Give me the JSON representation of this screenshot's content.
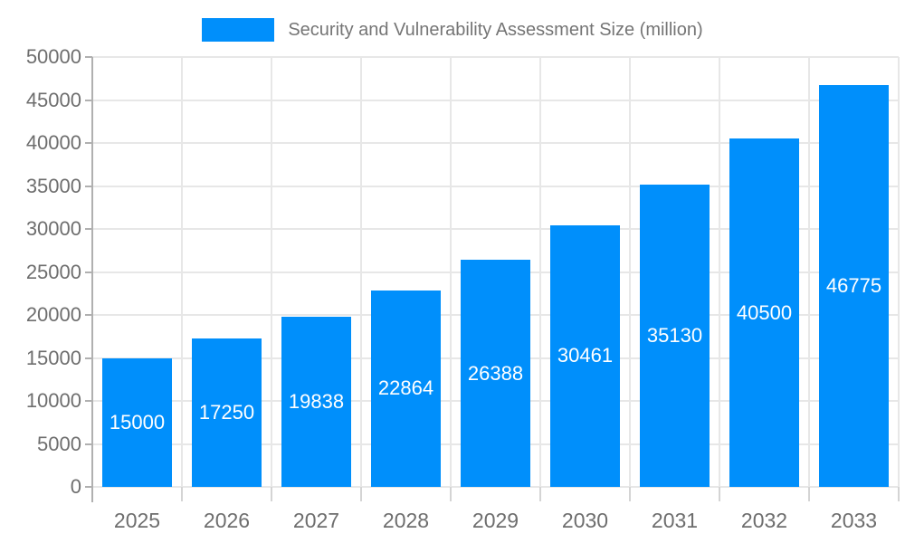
{
  "legend": {
    "label": "Security and Vulnerability Assessment Size (million)",
    "swatch_color": "#008FFB"
  },
  "chart_data": {
    "type": "bar",
    "title": "Security and Vulnerability Assessment Size (million)",
    "categories": [
      "2025",
      "2026",
      "2027",
      "2028",
      "2029",
      "2030",
      "2031",
      "2032",
      "2033"
    ],
    "values": [
      15000,
      17250,
      19838,
      22864,
      26388,
      30461,
      35130,
      40500,
      46775
    ],
    "bar_labels": [
      "15000",
      "17250",
      "19838",
      "22864",
      "26388",
      "30461",
      "35130",
      "40500",
      "46775"
    ],
    "xlabel": "",
    "ylabel": "",
    "ylim": [
      0,
      50000
    ],
    "ytick_step": 5000,
    "ytick_labels": [
      "0",
      "5000",
      "10000",
      "15000",
      "20000",
      "25000",
      "30000",
      "35000",
      "40000",
      "45000",
      "50000"
    ],
    "grid": true,
    "legend_position": "top",
    "value_labels_inside_bars": true,
    "colors": {
      "bar": "#008FFB",
      "axis_label": "#6e6e6e",
      "legend_text": "#757575",
      "grid": "#e7e7e7",
      "axis_line": "#b0b0b0",
      "value_label": "#ffffff",
      "background": "#ffffff"
    }
  }
}
